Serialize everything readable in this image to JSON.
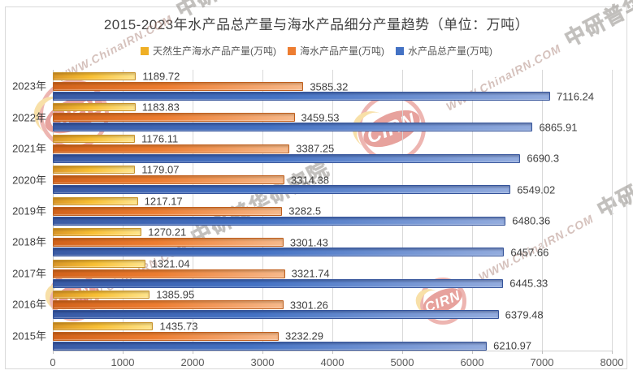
{
  "chart_data": {
    "type": "bar",
    "orientation": "horizontal",
    "title": "2015-2023年水产品总产量与海水产品细分产量趋势（单位：万吨）",
    "categories": [
      "2023年",
      "2022年",
      "2021年",
      "2020年",
      "2019年",
      "2018年",
      "2017年",
      "2016年",
      "2015年"
    ],
    "series": [
      {
        "key": "natural-marine",
        "name": "天然生产海水产品产量(万吨)",
        "color": "#EFAF25",
        "gradient": [
          "#DB9727",
          "#F9C034",
          "#FFE58C"
        ],
        "values": [
          1189.72,
          1183.83,
          1176.11,
          1179.07,
          1217.17,
          1270.21,
          1321.04,
          1385.95,
          1435.73
        ]
      },
      {
        "key": "marine",
        "name": "海水产品产量(万吨)",
        "color": "#ED7D31",
        "gradient": [
          "#D2621A",
          "#ED7D31",
          "#F7B98B"
        ],
        "values": [
          3585.32,
          3459.53,
          3387.25,
          3314.38,
          3282.5,
          3301.43,
          3321.74,
          3301.26,
          3232.29
        ]
      },
      {
        "key": "total",
        "name": "水产品总产量(万吨)",
        "color": "#4472C4",
        "gradient": [
          "#3A5BA5",
          "#4472C4",
          "#93ACDE"
        ],
        "values": [
          7116.24,
          6865.91,
          6690.3,
          6549.02,
          6480.36,
          6457.66,
          6445.33,
          6379.48,
          6210.97
        ]
      }
    ],
    "xlim": [
      0,
      8000
    ],
    "x_ticks": [
      0,
      1000,
      2000,
      3000,
      4000,
      5000,
      6000,
      7000,
      8000
    ],
    "grid": true,
    "legend_position": "top"
  },
  "watermark": {
    "url_text": "WWW.ChinaIRN.COM",
    "org_text": "中研普华研究院",
    "logo_text": "CIRN"
  }
}
